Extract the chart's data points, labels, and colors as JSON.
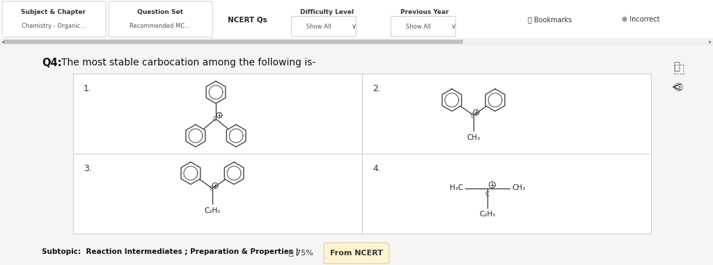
{
  "bg_color": "#f0f0f0",
  "main_bg": "#ffffff",
  "header_bg": "#f5f5f5",
  "title_bold": "Q4:",
  "question": "  The most stable carbocation among the following is-",
  "subtopic_text": "Subtopic:  Reaction Intermediates ; Preparation & Properties |",
  "percent_text": "75%",
  "ncert_text": "From NCERT",
  "ncert_bg": "#fef3d0",
  "ncert_border": "#e8d5a0",
  "header_items": [
    "Subject & Chapter",
    "Question Set",
    "NCERT Qs",
    "Difficulty Level",
    "Previous Year",
    "Bookmarks",
    "Incorrect"
  ],
  "header_sub": [
    "Chemistry - Organic...",
    "Recommended MC...",
    "",
    "Show All",
    "Show All",
    "",
    ""
  ],
  "grid_line_color": "#d0d0d0",
  "text_color": "#222222",
  "option_label_color": "#333333",
  "mol_color": "#444444",
  "mol_lw": 1.0,
  "benz_r": 16
}
